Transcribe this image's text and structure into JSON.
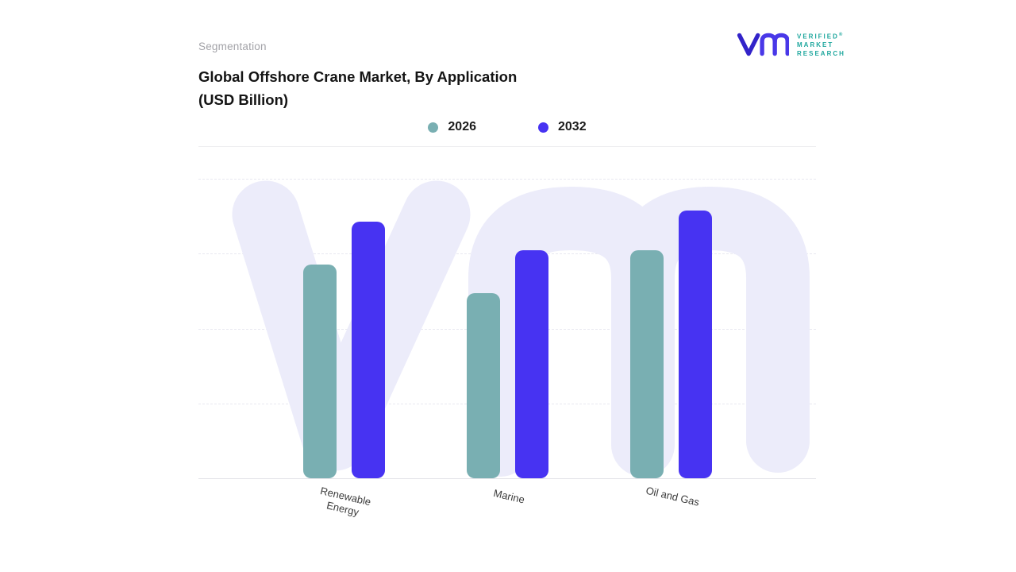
{
  "page": {
    "eyebrow": "Segmentation",
    "title_line1": "Global Offshore Crane Market, By Application",
    "title_line2": "(USD Billion)"
  },
  "logo": {
    "line1": "VERIFIED",
    "line2": "MARKET",
    "line3": "RESEARCH",
    "registered_mark": "®",
    "mark_color": "#4938e8",
    "text_color": "#1fa79e"
  },
  "chart_data": {
    "type": "bar",
    "title": "Global Offshore Crane Market, By Application (USD Billion)",
    "categories": [
      "Renewable Energy",
      "Marine",
      "Oil and Gas"
    ],
    "series": [
      {
        "name": "2026",
        "color": "#79afb2",
        "values": [
          7.5,
          6.5,
          8.0
        ]
      },
      {
        "name": "2032",
        "color": "#4733f2",
        "values": [
          9.0,
          8.0,
          9.4
        ]
      }
    ],
    "xlabel": "",
    "ylabel": "",
    "ylim": [
      0,
      10.5
    ],
    "grid": "horizontal-dashed",
    "legend_position": "top-center",
    "axis_value_labels_visible": false
  }
}
